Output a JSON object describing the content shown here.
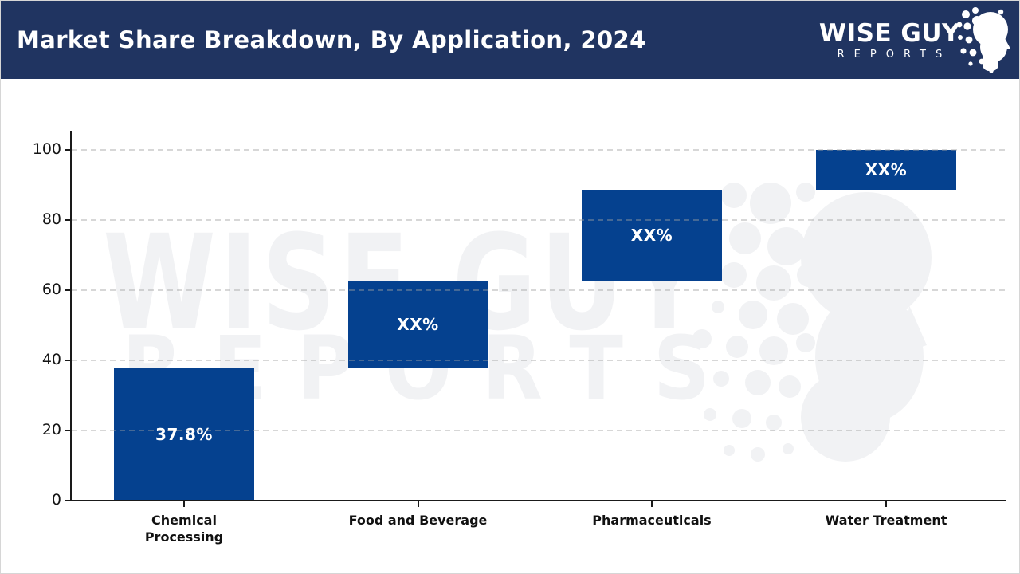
{
  "header": {
    "title": "Market Share Breakdown, By Application, 2024",
    "logo": {
      "line1": "WISE GUY",
      "line2": "REPORTS"
    }
  },
  "watermark": {
    "line1": "WISE GUY",
    "line2": "REPORTS"
  },
  "chart_data": {
    "type": "bar",
    "subtype": "waterfall-stacked-percentage",
    "title": "Market Share Breakdown, By Application, 2024",
    "categories": [
      "Chemical Processing",
      "Food and Beverage",
      "Pharmaceuticals",
      "Water Treatment"
    ],
    "category_lines": [
      [
        "Chemical",
        "Processing"
      ],
      [
        "Food and Beverage"
      ],
      [
        "Pharmaceuticals"
      ],
      [
        "Water Treatment"
      ]
    ],
    "segments": [
      {
        "category": "Chemical Processing",
        "from": 0,
        "to": 37.8,
        "value": 37.8,
        "label": "37.8%"
      },
      {
        "category": "Food and Beverage",
        "from": 37.8,
        "to": 62.8,
        "value": 25.0,
        "label": "XX%"
      },
      {
        "category": "Pharmaceuticals",
        "from": 62.8,
        "to": 88.6,
        "value": 25.8,
        "label": "XX%"
      },
      {
        "category": "Water Treatment",
        "from": 88.6,
        "to": 100,
        "value": 11.4,
        "label": "XX%"
      }
    ],
    "cumulative_top": [
      37.8,
      62.8,
      88.6,
      100
    ],
    "bar_labels": [
      "37.8%",
      "XX%",
      "XX%",
      "XX%"
    ],
    "xlabel": "",
    "ylabel": "",
    "ylim": [
      0,
      100
    ],
    "yticks": [
      0,
      20,
      40,
      60,
      80,
      100
    ],
    "ytick_labels": [
      "0",
      "20",
      "40",
      "60",
      "80",
      "100"
    ],
    "grid": "horizontal-dashed",
    "legend": "none",
    "bar_color": "#05418f",
    "label_color": "#ffffff"
  },
  "colors": {
    "header_bg": "#203461",
    "bar_fill": "#05418f",
    "watermark": "#f1f2f4",
    "axis": "#1a1a1a",
    "page_border": "#d6d6d6"
  }
}
